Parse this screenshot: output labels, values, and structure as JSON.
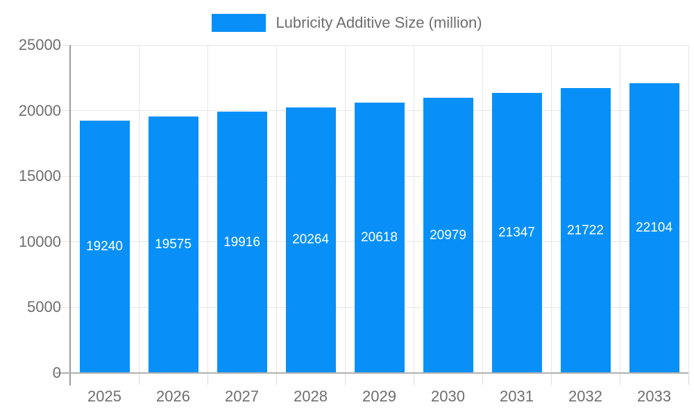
{
  "chart_data": {
    "type": "bar",
    "title": "Lubricity Additive Size (million)",
    "legend": {
      "label": "Lubricity Additive Size (million)",
      "position": "top"
    },
    "categories": [
      "2025",
      "2026",
      "2027",
      "2028",
      "2029",
      "2030",
      "2031",
      "2032",
      "2033"
    ],
    "series": [
      {
        "name": "Lubricity Additive Size (million)",
        "values": [
          19240,
          19575,
          19916,
          20264,
          20618,
          20979,
          21347,
          21722,
          22104
        ]
      }
    ],
    "bar_labels": [
      "19240",
      "19575",
      "19916",
      "20264",
      "20618",
      "20979",
      "21347",
      "21722",
      "22104"
    ],
    "xlabel": "",
    "ylabel": "",
    "ylim": [
      0,
      25000
    ],
    "yticks": [
      0,
      5000,
      10000,
      15000,
      20000,
      25000
    ],
    "ytick_labels": [
      "0",
      "5000",
      "10000",
      "15000",
      "20000",
      "25000"
    ],
    "grid": true,
    "colors": {
      "bar": "#0890f8",
      "bar_label": "#ffffff",
      "axis_text": "#6e6e6e",
      "gridline": "#e6e6e6",
      "axis_line": "#999999",
      "baseline": "#b0b0b0",
      "background": "#ffffff"
    }
  }
}
